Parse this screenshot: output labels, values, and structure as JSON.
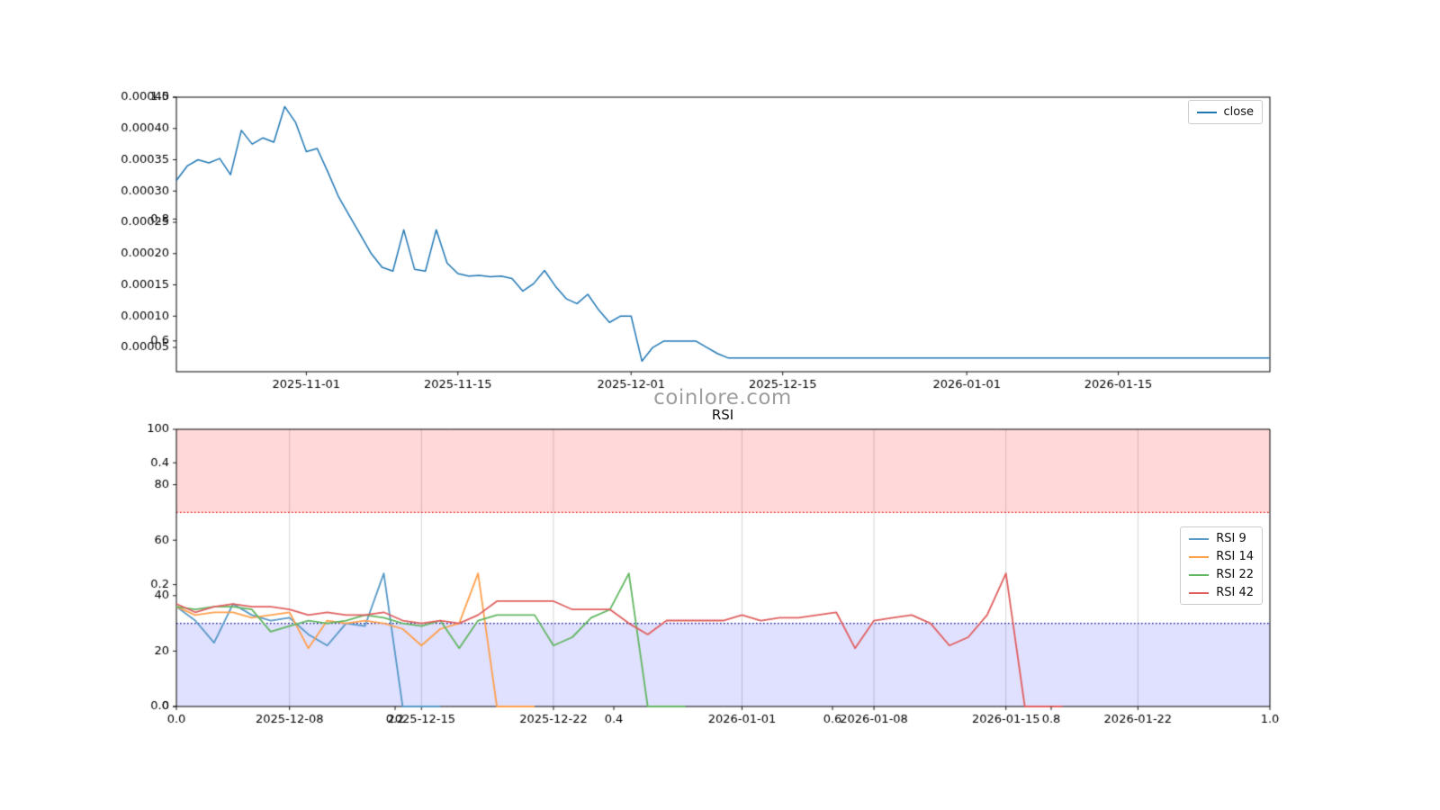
{
  "watermark": {
    "text": "coinlore.com",
    "color": "#9e9e9e"
  },
  "overlay_axis": {
    "x_tick_values": [
      0,
      0.2,
      0.4,
      0.6,
      0.8,
      1.0
    ],
    "x_tick_labels": [
      "0.0",
      "0.2",
      "0.4",
      "0.6",
      "0.8",
      "1.0"
    ],
    "y_tick_values": [
      0,
      0.2,
      0.4,
      0.6,
      0.8,
      1.0
    ],
    "y_tick_labels": [
      "0.0",
      "0.2",
      "0.4",
      "0.6",
      "0.8",
      "1.0"
    ]
  },
  "chart_data": [
    {
      "type": "line",
      "name": "price",
      "title": "",
      "xlim": [
        "2025-10-20",
        "2026-01-29"
      ],
      "ylim": [
        1.12e-05,
        0.00045
      ],
      "x_ticks": [
        "2025-11-01",
        "2025-11-15",
        "2025-12-01",
        "2025-12-15",
        "2026-01-01",
        "2026-01-15"
      ],
      "y_tick_values": [
        5e-05,
        0.0001,
        0.00015,
        0.0002,
        0.00025,
        0.0003,
        0.00035,
        0.0004,
        0.00045
      ],
      "y_tick_labels": [
        "0.00005",
        "0.00010",
        "0.00015",
        "0.00020",
        "0.00025",
        "0.00030",
        "0.00035",
        "0.00040",
        "0.00045"
      ],
      "series": [
        {
          "name": "close",
          "color": "#1f77b4",
          "start": "2025-10-20",
          "values": [
            0.000317,
            0.00034,
            0.00035,
            0.000345,
            0.000352,
            0.000326,
            0.000397,
            0.000375,
            0.000385,
            0.000378,
            0.000435,
            0.00041,
            0.000363,
            0.000368,
            0.00033,
            0.00029,
            0.00026,
            0.00023,
            0.0002,
            0.000178,
            0.000172,
            0.000238,
            0.000175,
            0.000172,
            0.000238,
            0.000185,
            0.000168,
            0.000164,
            0.000165,
            0.000163,
            0.000164,
            0.00016,
            0.00014,
            0.000152,
            0.000173,
            0.000148,
            0.000128,
            0.00012,
            0.000135,
            0.00011,
            9e-05,
            0.0001,
            0.0001,
            2.8e-05,
            5e-05,
            6e-05,
            6e-05,
            6e-05,
            6e-05,
            5e-05,
            4e-05,
            3.3e-05,
            3.3e-05,
            3.3e-05,
            3.3e-05,
            3.3e-05,
            3.3e-05,
            3.3e-05,
            3.3e-05,
            3.3e-05,
            3.3e-05,
            3.3e-05,
            3.3e-05,
            3.3e-05,
            3.3e-05,
            3.3e-05,
            3.3e-05,
            3.3e-05,
            3.3e-05,
            3.3e-05,
            3.3e-05,
            3.3e-05,
            3.3e-05,
            3.3e-05,
            3.3e-05,
            3.3e-05,
            3.3e-05,
            3.3e-05,
            3.3e-05,
            3.3e-05,
            3.3e-05,
            3.3e-05,
            3.3e-05,
            3.3e-05,
            3.3e-05,
            3.3e-05,
            3.3e-05,
            3.3e-05,
            3.3e-05,
            3.3e-05,
            3.3e-05,
            3.3e-05,
            3.3e-05,
            3.3e-05,
            3.3e-05,
            3.3e-05,
            3.3e-05,
            3.3e-05,
            3.3e-05,
            3.3e-05,
            3.3e-05,
            3.3e-05
          ]
        }
      ]
    },
    {
      "type": "line",
      "name": "rsi",
      "title": "RSI",
      "xlim": [
        "2025-12-02",
        "2026-01-29"
      ],
      "ylim": [
        0,
        100
      ],
      "x_ticks": [
        "2025-12-08",
        "2025-12-15",
        "2025-12-22",
        "2026-01-01",
        "2026-01-08",
        "2026-01-15",
        "2026-01-22"
      ],
      "y_tick_values": [
        0,
        20,
        40,
        60,
        80,
        100
      ],
      "y_tick_labels": [
        "0",
        "20",
        "40",
        "60",
        "80",
        "100"
      ],
      "bands": [
        {
          "from": 70,
          "to": 100,
          "color": "rgba(255,0,0,0.15)"
        },
        {
          "from": 0,
          "to": 30,
          "color": "rgba(0,0,255,0.12)"
        }
      ],
      "hlines": [
        {
          "y": 70,
          "color": "#ff0000",
          "style": "dotted"
        },
        {
          "y": 30,
          "color": "#00008b",
          "style": "dotted"
        }
      ],
      "series": [
        {
          "name": "RSI 9",
          "color": "#5799c7",
          "start": "2025-12-02",
          "values": [
            36,
            31,
            23,
            37,
            33,
            31,
            32,
            26,
            22,
            30,
            29,
            48,
            0,
            0,
            0
          ]
        },
        {
          "name": "RSI 14",
          "color": "#ffa04d",
          "start": "2025-12-02",
          "values": [
            36,
            33,
            34,
            34,
            32,
            33,
            34,
            21,
            31,
            30,
            31,
            30,
            28,
            22,
            28,
            30,
            48,
            0,
            0,
            0
          ]
        },
        {
          "name": "RSI 22",
          "color": "#62b762",
          "start": "2025-12-02",
          "values": [
            36,
            35,
            36,
            36,
            35,
            27,
            29,
            31,
            30,
            31,
            33,
            32,
            30,
            29,
            31,
            21,
            31,
            33,
            33,
            33,
            22,
            25,
            32,
            35,
            48,
            0,
            0,
            0
          ]
        },
        {
          "name": "RSI 42",
          "color": "#e06060",
          "start": "2025-12-02",
          "values": [
            37,
            34,
            36,
            37,
            36,
            36,
            35,
            33,
            34,
            33,
            33,
            34,
            31,
            30,
            31,
            30,
            33,
            38,
            38,
            38,
            38,
            35,
            35,
            35,
            30,
            26,
            31,
            31,
            31,
            31,
            33,
            31,
            32,
            32,
            33,
            34,
            21,
            31,
            32,
            33,
            30,
            22,
            25,
            33,
            48,
            0,
            0,
            0
          ]
        }
      ]
    }
  ]
}
